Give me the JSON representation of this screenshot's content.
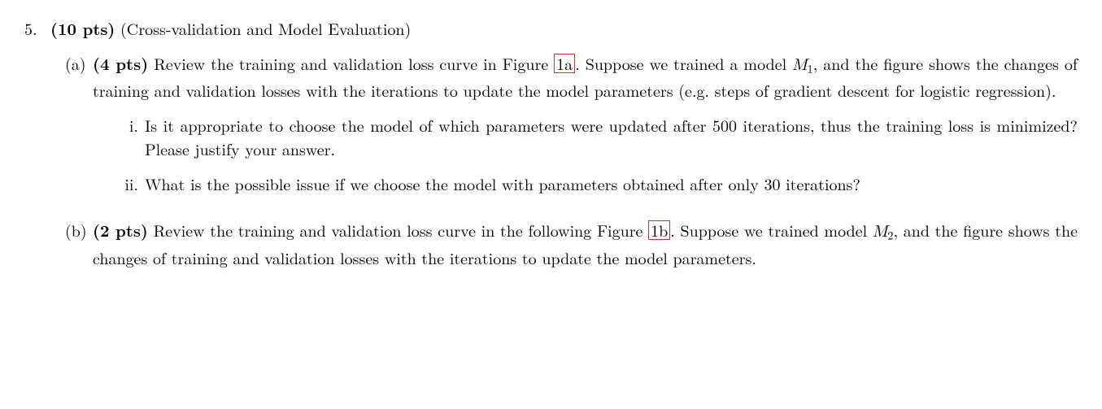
{
  "problem": {
    "number": "5.",
    "pts": "(10 pts)",
    "title": "(Cross-validation and Model Evaluation)"
  },
  "a": {
    "label": "(a)",
    "pts": "(4 pts)",
    "text_before_ref": "Review the training and validation loss curve in Figure ",
    "ref": "1a",
    "text_after_ref_1": ". Suppose we trained a model ",
    "model": "M",
    "model_sub": "1",
    "text_after_ref_2": ", and the figure shows the changes of training and validation losses with the iterations to update the model parameters (e.g. steps of gradient descent for logistic regression).",
    "i": {
      "label": "i.",
      "text": "Is it appropriate to choose the model of which parameters were updated after 500 iterations, thus the training loss is minimized? Please justify your answer."
    },
    "ii": {
      "label": "ii.",
      "text": "What is the possible issue if we choose the model with parameters obtained after only 30 iterations?"
    }
  },
  "b": {
    "label": "(b)",
    "pts": "(2 pts)",
    "text_before_ref": "Review the training and validation loss curve in the following Figure ",
    "ref": "1b",
    "text_after_ref_1": ". Suppose we trained model ",
    "model": "M",
    "model_sub": "2",
    "text_after_ref_2": ", and the figure shows the changes of training and validation losses with the iterations to update the model parameters."
  },
  "colors": {
    "ref_border": "#d03030",
    "text": "#000000",
    "background": "#ffffff"
  }
}
